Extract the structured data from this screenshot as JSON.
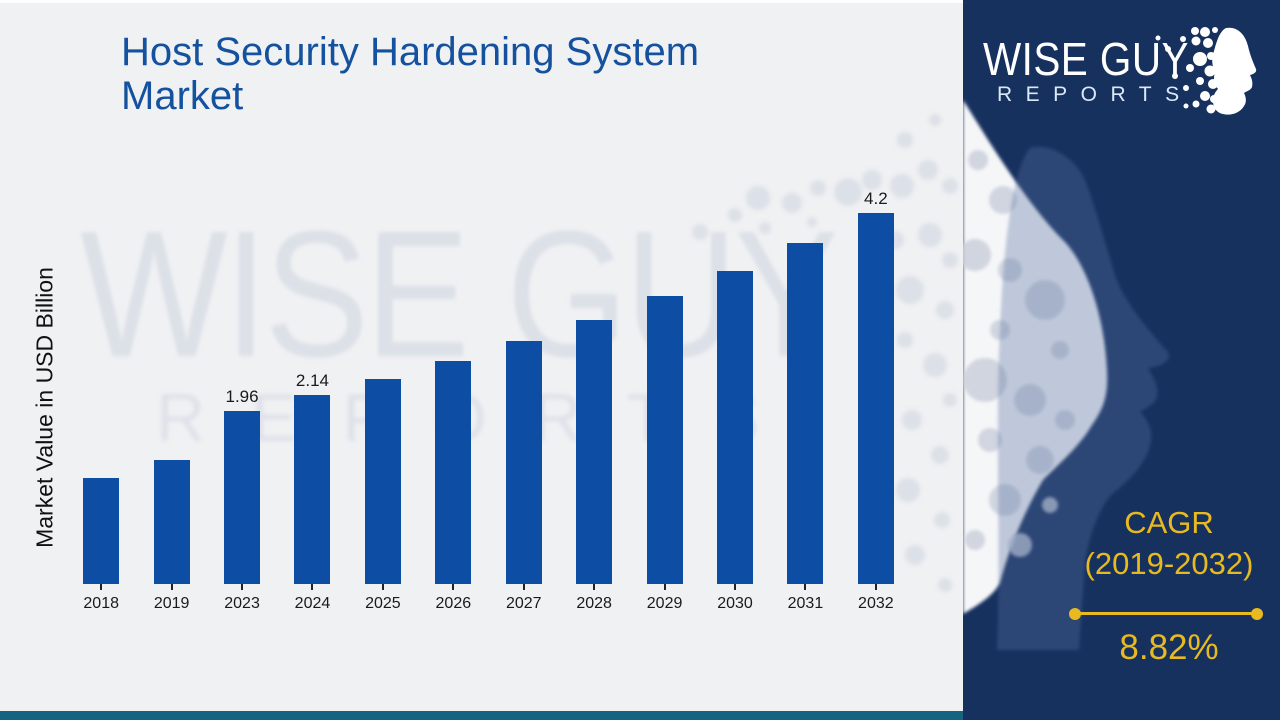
{
  "title": {
    "line1": "Host Security Hardening System",
    "line2": "Market"
  },
  "watermark": {
    "primary": "WISE GUY",
    "secondary": "REPORTS"
  },
  "logo": {
    "primary": "WISE GUY",
    "secondary": "REPORTS"
  },
  "cagr": {
    "label": "CAGR",
    "range": "(2019-2032)",
    "value": "8.82%"
  },
  "colors": {
    "background": "#f0f1f3",
    "bar": "#0d4da3",
    "navy_panel": "#17315f",
    "gold": "#e8ba1f",
    "title_blue": "#14519e",
    "teal_strip": "#176482",
    "watermark": "#cfd5e0"
  },
  "chart_data": {
    "type": "bar",
    "title": "Host Security Hardening System Market",
    "ylabel": "Market Value in USD Billion",
    "xlabel": "",
    "categories": [
      "2018",
      "2019",
      "2023",
      "2024",
      "2025",
      "2026",
      "2027",
      "2028",
      "2029",
      "2030",
      "2031",
      "2032"
    ],
    "values": [
      1.2,
      1.4,
      1.96,
      2.14,
      2.32,
      2.53,
      2.75,
      2.99,
      3.26,
      3.54,
      3.86,
      4.2
    ],
    "point_labels": {
      "2023": "1.96",
      "2024": "2.14",
      "2032": "4.2"
    },
    "ylim": [
      0,
      4.6
    ],
    "grid": false,
    "legend": "none",
    "bar_color": "#0d4da3"
  }
}
